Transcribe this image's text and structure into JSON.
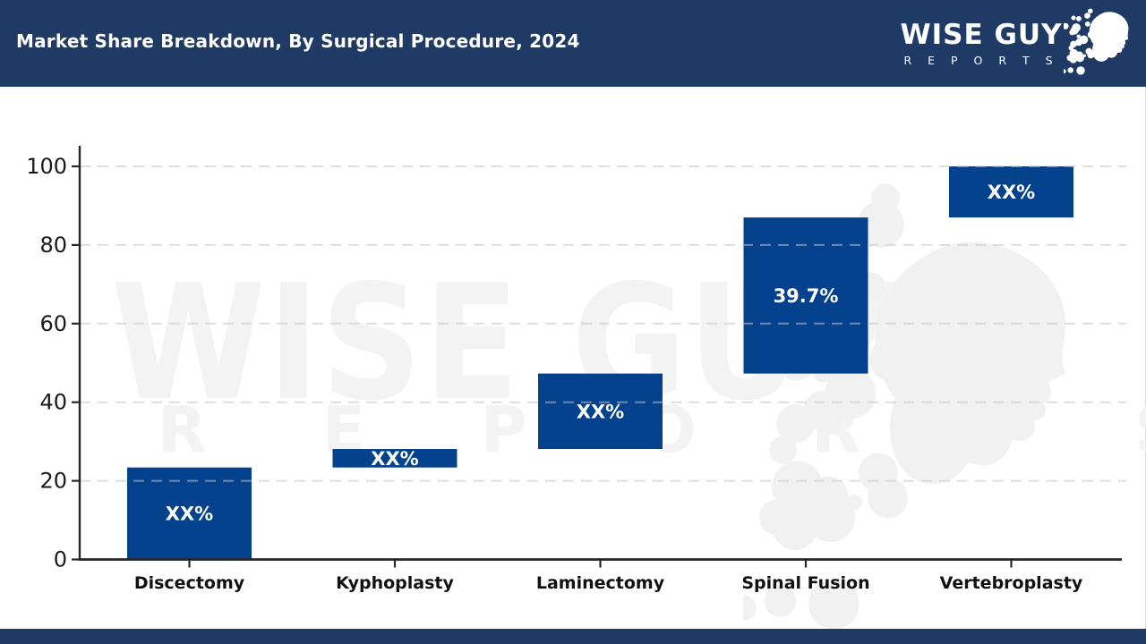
{
  "header": {
    "title": "Market Share Breakdown, By Surgical Procedure, 2024",
    "logo_line1": "WISE GUY",
    "logo_line2": "R E P O R T S",
    "bg_color": "#203a66"
  },
  "watermark": {
    "line1": "WISE GUY",
    "line2": "R E P O R T S"
  },
  "chart_data": {
    "type": "bar",
    "subtype": "floating-waterfall",
    "title": "Market Share Breakdown, By Surgical Procedure, 2024",
    "categories": [
      "Discectomy",
      "Kyphoplasty",
      "Laminectomy",
      "Spinal Fusion",
      "Vertebroplasty"
    ],
    "segments": [
      {
        "category": "Discectomy",
        "start": 0,
        "end": 23.4,
        "label": "XX%"
      },
      {
        "category": "Kyphoplasty",
        "start": 23.4,
        "end": 28.1,
        "label": "XX%"
      },
      {
        "category": "Laminectomy",
        "start": 28.1,
        "end": 47.3,
        "label": "XX%"
      },
      {
        "category": "Spinal Fusion",
        "start": 47.3,
        "end": 87.0,
        "label": "39.7%"
      },
      {
        "category": "Vertebroplasty",
        "start": 87.0,
        "end": 100,
        "label": "XX%"
      }
    ],
    "xlabel": "",
    "ylabel": "",
    "ylim": [
      0,
      100
    ],
    "yticks": [
      0,
      20,
      40,
      60,
      80,
      100
    ],
    "grid": "horizontal dashed",
    "legend": "none",
    "bar_color": "#04428e",
    "bar_label_color": "#ffffff",
    "axis_color": "#262626",
    "grid_color": "#c4c4c4",
    "tick_label_color": "#1a1a1a"
  }
}
